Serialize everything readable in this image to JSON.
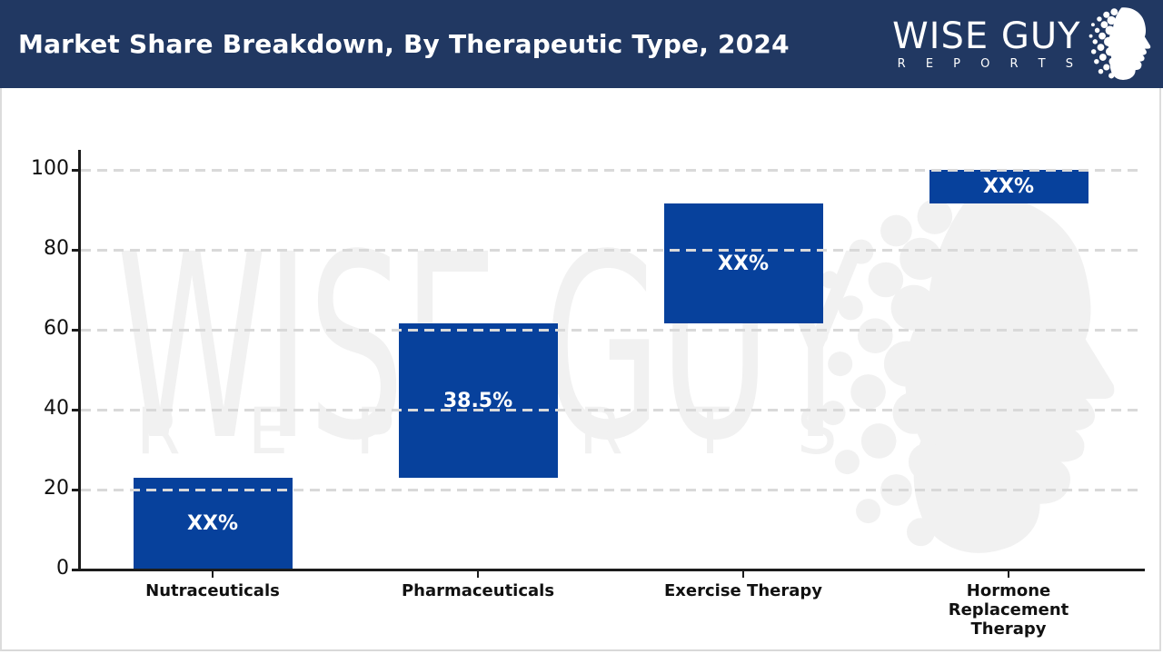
{
  "header": {
    "title": "Market Share Breakdown, By Therapeutic Type, 2024",
    "logo": {
      "brand": "WISE GUY",
      "sub": "R E P O R T S"
    }
  },
  "watermark": {
    "line1": "WISE GUY",
    "line2": "R E P O R T S"
  },
  "colors": {
    "header_bg": "#213862",
    "bar": "#07419c",
    "grid": "#d9d9d9",
    "axis": "#1c1c1c",
    "bar_label_text": "#ffffff",
    "watermark": "#f1f1f1"
  },
  "chart_data": {
    "type": "bar",
    "subtype": "waterfall",
    "title": "Market Share Breakdown, By Therapeutic Type, 2024",
    "unit": "%",
    "categories": [
      "Nutraceuticals",
      "Pharmaceuticals",
      "Exercise Therapy",
      "Hormone Replacement Therapy"
    ],
    "segments": [
      {
        "category": "Nutraceuticals",
        "label": "XX%",
        "start": 0,
        "end": 23
      },
      {
        "category": "Pharmaceuticals",
        "label": "38.5%",
        "start": 23,
        "end": 61.5
      },
      {
        "category": "Exercise Therapy",
        "label": "XX%",
        "start": 61.5,
        "end": 91.5
      },
      {
        "category": "Hormone Replacement Therapy",
        "label": "XX%",
        "start": 91.5,
        "end": 100
      }
    ],
    "yticks": [
      0,
      20,
      40,
      60,
      80,
      100
    ],
    "ylim": [
      0,
      105
    ],
    "xlabel": "",
    "ylabel": "",
    "grid": "horizontal-dashed",
    "legend": "none"
  }
}
